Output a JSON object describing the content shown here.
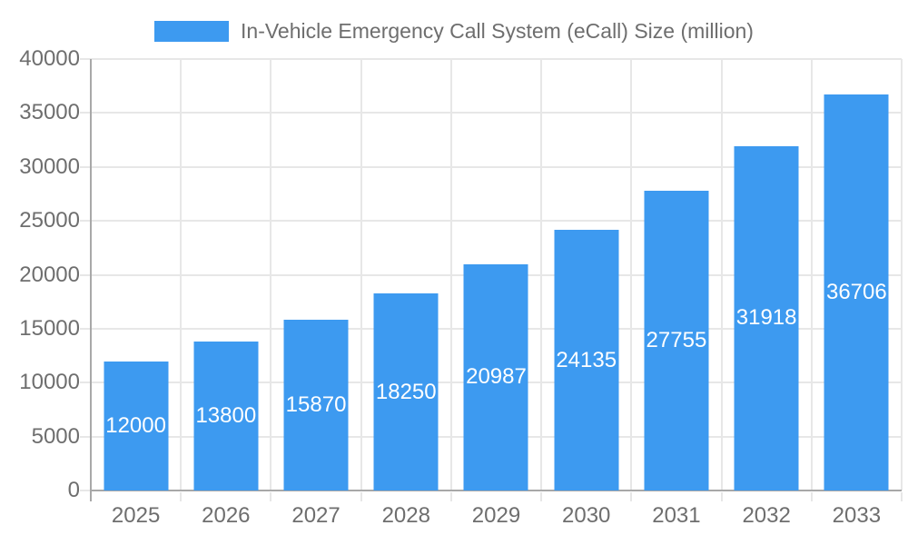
{
  "chart_data": {
    "type": "bar",
    "legend": "In-Vehicle Emergency Call System (eCall) Size (million)",
    "legend_position": "top-center",
    "categories": [
      "2025",
      "2026",
      "2027",
      "2028",
      "2029",
      "2030",
      "2031",
      "2032",
      "2033"
    ],
    "values": [
      12000,
      13800,
      15870,
      18250,
      20987,
      24135,
      27755,
      31918,
      36706
    ],
    "yticks": [
      0,
      5000,
      10000,
      15000,
      20000,
      25000,
      30000,
      35000,
      40000
    ],
    "ylim": [
      0,
      40000
    ],
    "xlabel": "",
    "ylabel": "",
    "grid": true,
    "colors": {
      "bar": "#3d9af0",
      "bar_label": "#ffffff",
      "axis_text": "#6e6e6e",
      "legend_text": "#6e6e6e",
      "gridline": "#e7e7e7",
      "axis_line": "#a8a8a8",
      "background": "#ffffff"
    }
  }
}
